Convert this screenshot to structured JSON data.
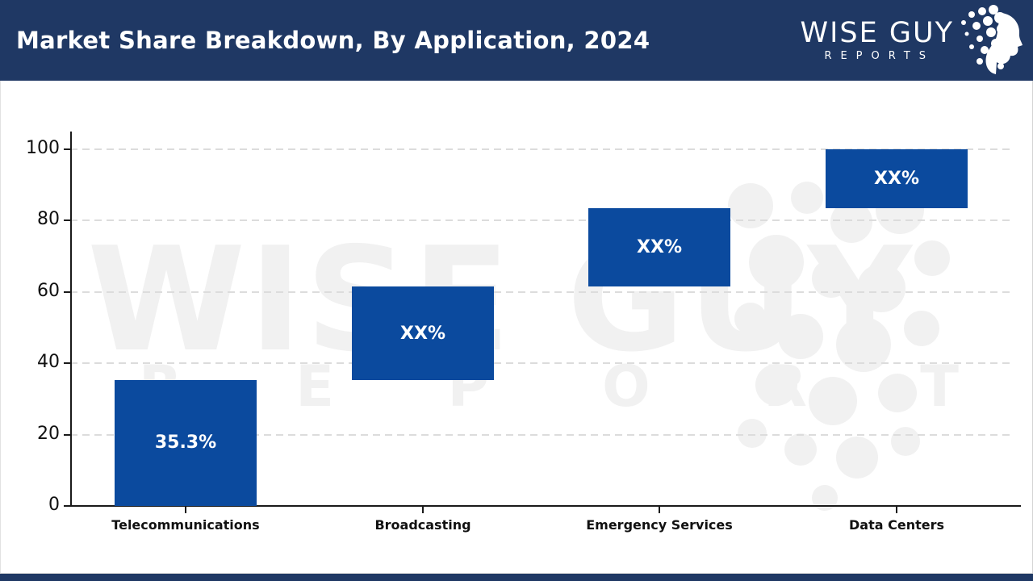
{
  "header": {
    "title": "Market Share Breakdown, By Application, 2024",
    "logo_line1": "WISE GUY",
    "logo_line2": "REPORTS",
    "bg_color": "#1f3864"
  },
  "watermark": {
    "line1": "WISE GUY",
    "line2": "R E P O R T S"
  },
  "chart_data": {
    "type": "bar",
    "subtype": "waterfall",
    "title": "Market Share Breakdown, By Application, 2024",
    "categories": [
      "Telecommunications",
      "Broadcasting",
      "Emergency Services",
      "Data Centers"
    ],
    "segments": [
      {
        "category": "Telecommunications",
        "start": 0,
        "end": 35.3,
        "label": "35.3%"
      },
      {
        "category": "Broadcasting",
        "start": 35.3,
        "end": 61.5,
        "label": "XX%"
      },
      {
        "category": "Emergency Services",
        "start": 61.5,
        "end": 83.5,
        "label": "XX%"
      },
      {
        "category": "Data Centers",
        "start": 83.5,
        "end": 100,
        "label": "XX%"
      }
    ],
    "y_ticks": [
      0,
      20,
      40,
      60,
      80,
      100
    ],
    "ylim": [
      0,
      100
    ],
    "xlabel": "",
    "ylabel": "",
    "grid": "horizontal-dashed",
    "legend": "none",
    "bar_color": "#0b4a9e",
    "label_color": "#ffffff"
  }
}
